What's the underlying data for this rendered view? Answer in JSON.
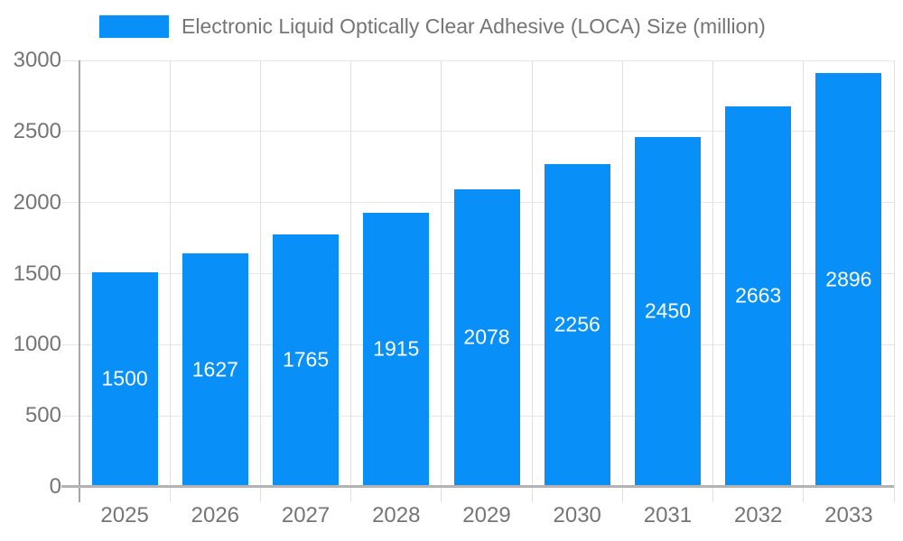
{
  "legend": {
    "label": "Electronic Liquid Optically Clear Adhesive (LOCA) Size (million)"
  },
  "colors": {
    "bar": "#0890f8",
    "bar_value_label": "#ffffff",
    "axis_text": "#757575",
    "gridline": "#e6e6e6",
    "axis_line": "#b3b3b3"
  },
  "chart_data": {
    "type": "bar",
    "title": "Electronic Liquid Optically Clear Adhesive (LOCA) Size (million)",
    "categories": [
      "2025",
      "2026",
      "2027",
      "2028",
      "2029",
      "2030",
      "2031",
      "2032",
      "2033"
    ],
    "values": [
      1500,
      1627,
      1765,
      1915,
      2078,
      2256,
      2450,
      2663,
      2896
    ],
    "xlabel": "",
    "ylabel": "",
    "ylim": [
      0,
      3000
    ],
    "yticks": [
      0,
      500,
      1000,
      1500,
      2000,
      2500,
      3000
    ],
    "grid": true,
    "legend_position": "top-left",
    "value_labels": "inside-center"
  }
}
